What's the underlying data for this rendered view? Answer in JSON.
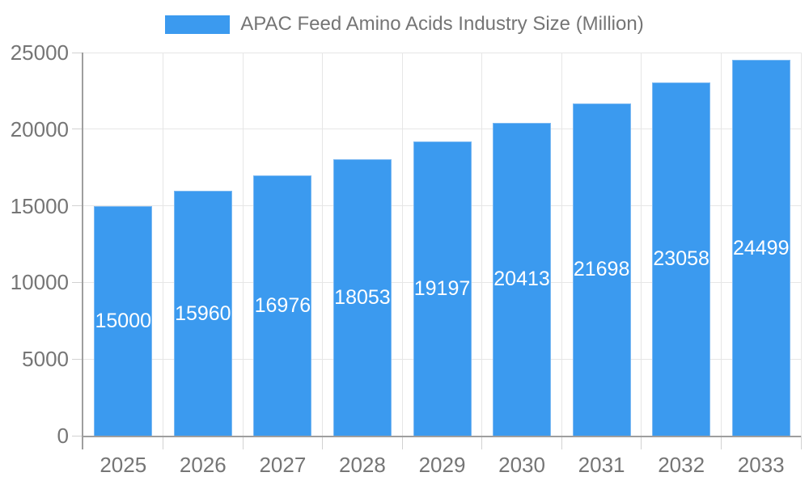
{
  "chart_data": {
    "type": "bar",
    "title": "APAC Feed Amino Acids Industry Size (Million)",
    "categories": [
      "2025",
      "2026",
      "2027",
      "2028",
      "2029",
      "2030",
      "2031",
      "2032",
      "2033"
    ],
    "values": [
      15000,
      15960,
      16976,
      18053,
      19197,
      20413,
      21698,
      23058,
      24499
    ],
    "value_labels": [
      "15000",
      "15960",
      "16976",
      "18053",
      "19197",
      "20413",
      "21698",
      "23058",
      "24499"
    ],
    "xlabel": "",
    "ylabel": "",
    "ylim": [
      0,
      25000
    ],
    "yticks": [
      0,
      5000,
      10000,
      15000,
      20000,
      25000
    ],
    "ytick_labels": [
      "0",
      "5000",
      "10000",
      "15000",
      "20000",
      "25000"
    ],
    "grid": true,
    "legend_position": "top",
    "value_label_position": "inside-center",
    "colors": {
      "bar_fill": "#3B9AEF",
      "bar_border": "#7CB9F2",
      "grid_line": "#E6E6E6",
      "axis_line": "#9E9E9E",
      "tick_mark": "#D2D2D2",
      "axis_text": "#757575",
      "value_text": "#FFFFFF",
      "background": "#FFFFFF"
    }
  }
}
